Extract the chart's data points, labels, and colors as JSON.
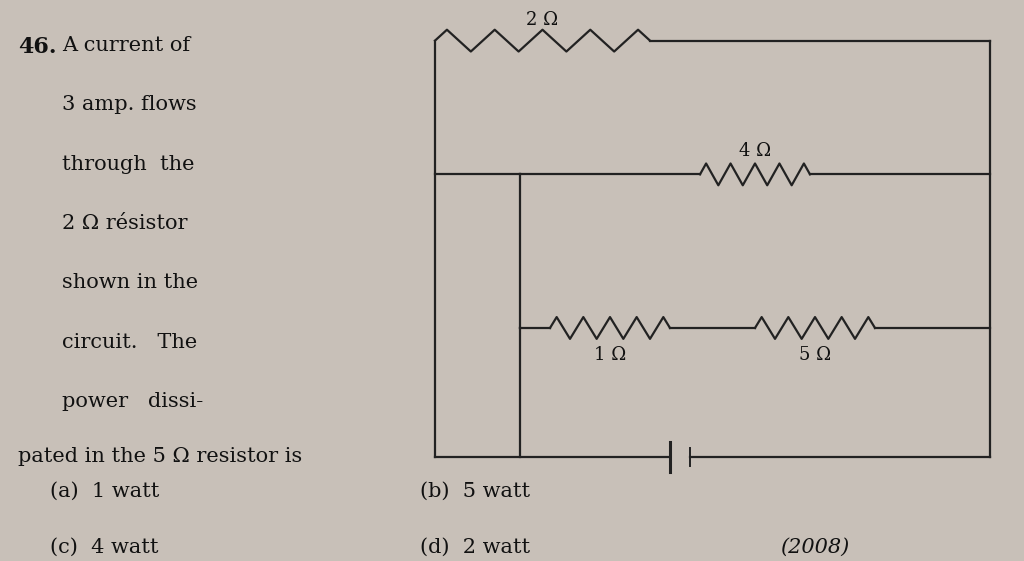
{
  "bg_color": "#c8c0b8",
  "text_color": "#111111",
  "question_number": "46.",
  "q_lines": [
    "A current of",
    "3 amp. flows",
    "through  the",
    "2 Ω résistor",
    "shown in the",
    "circuit.   The",
    "power   dissi-",
    "pated in the 5 Ω resistor is"
  ],
  "options_left": [
    "(a)  1 watt",
    "(c)  4 watt"
  ],
  "options_right": [
    "(b)  5 watt",
    "(d)  2 watt"
  ],
  "year": "(2008)",
  "lw": 1.6,
  "wire_color": "#222222",
  "res_color": "#222222",
  "label_2ohm": "2 Ω",
  "label_4ohm": "4 Ω",
  "label_1ohm": "1 Ω",
  "label_5ohm": "5 Ω",
  "font_size_text": 15,
  "font_size_label": 13
}
